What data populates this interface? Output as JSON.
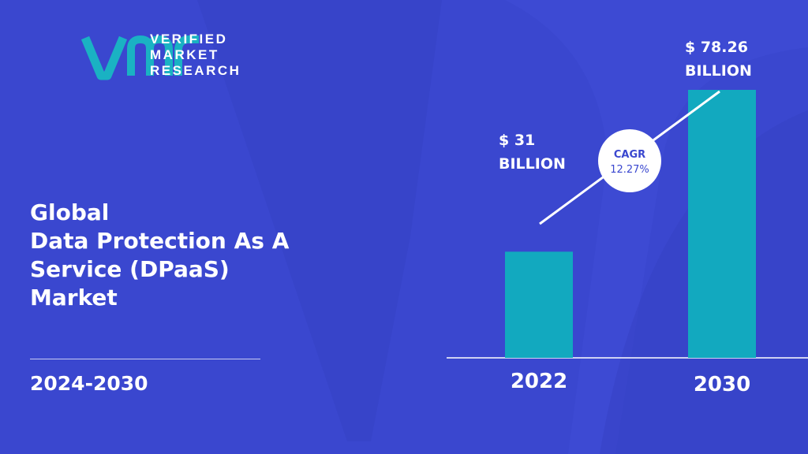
{
  "brand": {
    "line1": "VERIFIED",
    "line2": "MARKET",
    "line3": "RESEARCH"
  },
  "headline": {
    "line1": "Global",
    "line2": "Data Protection As A",
    "line3": "Service (DPaaS)",
    "line4": "Market"
  },
  "period": "2024-2030",
  "colors": {
    "background": "#3a47cf",
    "bar": "#12a9bf",
    "logo_teal": "#1ab2c3",
    "cagr_text": "#3a47cf"
  },
  "chart_data": {
    "type": "bar",
    "categories": [
      "2022",
      "2030"
    ],
    "values": [
      31,
      78.26
    ],
    "value_labels": [
      [
        "$ 31",
        "BILLION"
      ],
      [
        "$ 78.26",
        "BILLION"
      ]
    ],
    "unit": "USD Billion",
    "annotation": {
      "label": "CAGR",
      "value": "12.27%"
    },
    "ylim": [
      0,
      100
    ],
    "grid": false
  }
}
